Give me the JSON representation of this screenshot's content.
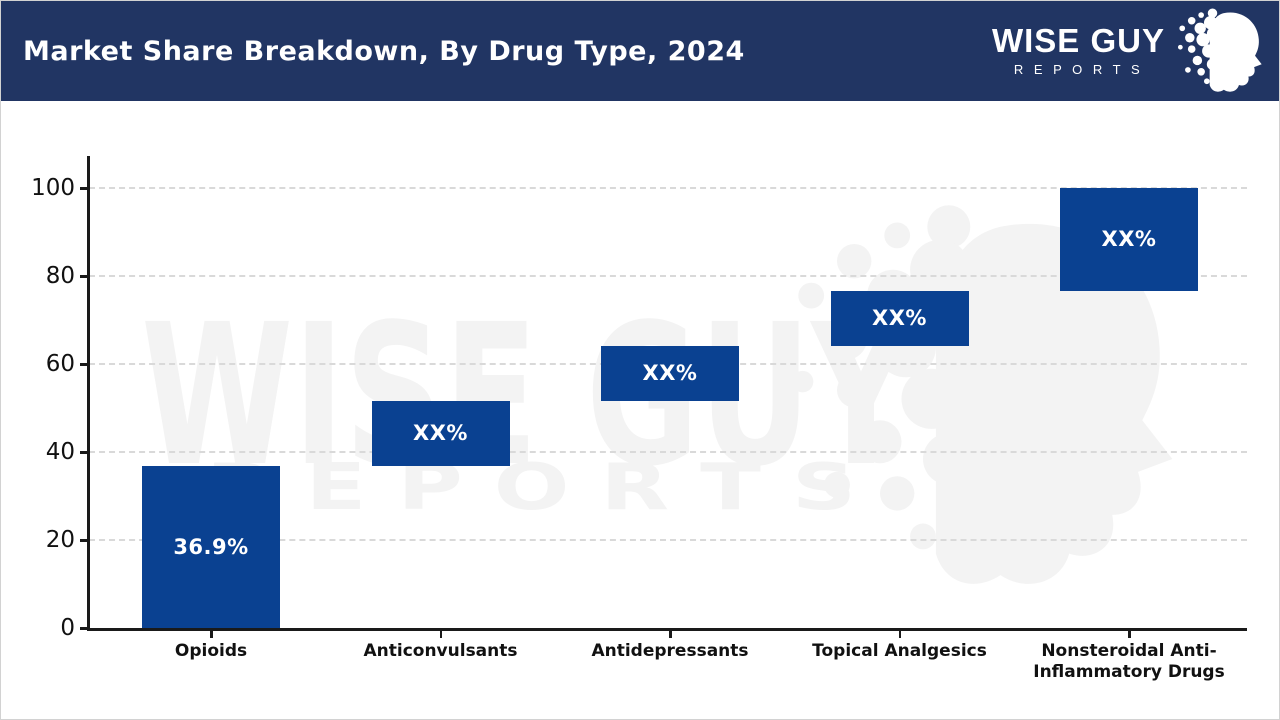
{
  "header": {
    "title": "Market Share Breakdown, By Drug Type, 2024",
    "background_color": "#213563",
    "logo": {
      "line1": "WISE GUY",
      "line2": "R E P O R T S"
    }
  },
  "watermark": {
    "line1": "WISE GUY",
    "line2": "R E P O R T S",
    "color": "#f3f3f3"
  },
  "chart_data": {
    "type": "bar",
    "subtype": "waterfall",
    "title": "Market Share Breakdown, By Drug Type, 2024",
    "categories": [
      "Opioids",
      "Anticonvulsants",
      "Antidepressants",
      "Topical Analgesics",
      "Nonsteroidal Anti-\nInflammatory Drugs"
    ],
    "segments": [
      {
        "category": "Opioids",
        "start": 0,
        "end": 36.9,
        "label": "36.9%"
      },
      {
        "category": "Anticonvulsants",
        "start": 36.9,
        "end": 51.6,
        "label": "XX%"
      },
      {
        "category": "Antidepressants",
        "start": 51.6,
        "end": 64.1,
        "label": "XX%"
      },
      {
        "category": "Topical Analgesics",
        "start": 64.1,
        "end": 76.6,
        "label": "XX%"
      },
      {
        "category": "Nonsteroidal Anti-Inflammatory Drugs",
        "start": 76.6,
        "end": 100,
        "label": "XX%"
      }
    ],
    "ylim": [
      0,
      100
    ],
    "yticks": [
      0,
      20,
      40,
      60,
      80,
      100
    ],
    "xlabel": "",
    "ylabel": "",
    "grid": "horizontal-dashed",
    "legend": "none",
    "bar_color": "#0a4191",
    "bar_label_color": "#ffffff",
    "axis_color": "#1a1a1a"
  }
}
